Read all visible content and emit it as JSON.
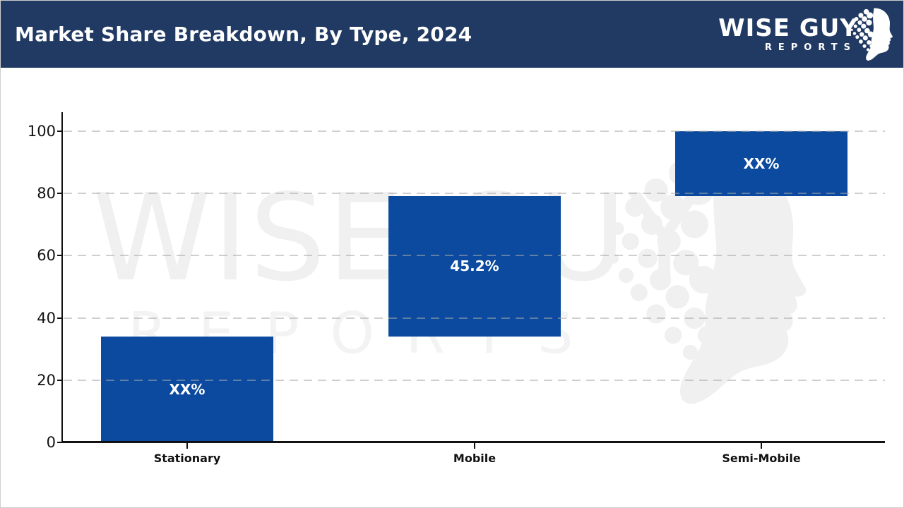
{
  "header": {
    "title": "Market Share Breakdown, By Type, 2024",
    "brand": {
      "name": "WISE GUY",
      "tagline": "REPORTS"
    }
  },
  "watermark": {
    "line1": "WISE GUY",
    "line2": "REPORTS"
  },
  "chart_data": {
    "type": "bar",
    "subtype": "floating-segment-waterfall",
    "title": "Market Share Breakdown, By Type, 2024",
    "categories": [
      "Stationary",
      "Mobile",
      "Semi-Mobile"
    ],
    "bars": [
      {
        "category": "Stationary",
        "start": 0,
        "end": 34,
        "value_label": "XX%"
      },
      {
        "category": "Mobile",
        "start": 34,
        "end": 79.2,
        "value_label": "45.2%"
      },
      {
        "category": "Semi-Mobile",
        "start": 79.2,
        "end": 100,
        "value_label": "XX%"
      }
    ],
    "xlabel": "",
    "ylabel": "",
    "ylim": [
      0,
      100
    ],
    "yticks": [
      0,
      20,
      40,
      60,
      80,
      100
    ],
    "grid": "horizontal-dashed",
    "legend": "none",
    "colors": {
      "bar": "#0b4a9e",
      "bar_label": "#ffffff",
      "grid": "#d9d9d9",
      "axis": "#111111",
      "header_bg": "#203a63",
      "header_text": "#ffffff",
      "watermark": "#f0f0f0"
    }
  }
}
